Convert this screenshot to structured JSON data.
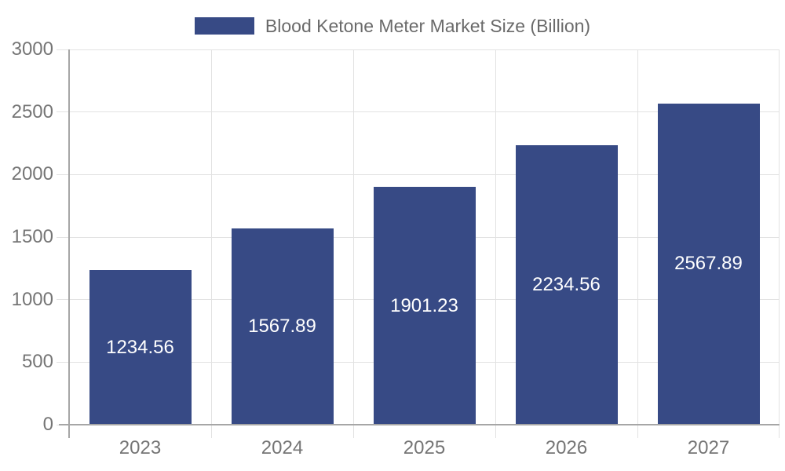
{
  "chart_data": {
    "type": "bar",
    "title": "Blood Ketone Meter Market Size (Billion)",
    "categories": [
      "2023",
      "2024",
      "2025",
      "2026",
      "2027"
    ],
    "values": [
      1234.56,
      1567.89,
      1901.23,
      2234.56,
      2567.89
    ],
    "value_labels": [
      "1234.56",
      "1567.89",
      "1901.23",
      "2234.56",
      "2567.89"
    ],
    "xlabel": "",
    "ylabel": "",
    "ylim": [
      0,
      3000
    ],
    "y_tick_step": 500,
    "y_tick_labels": [
      "0",
      "500",
      "1000",
      "1500",
      "2000",
      "2500",
      "3000"
    ],
    "grid": true,
    "legend_position": "top-center",
    "value_label_position": "inside-center",
    "colors": {
      "series": "#374a85",
      "value_label": "#ffffff",
      "grid_line": "#e2e2e2",
      "axis_line": "#a6a6a6",
      "tick_label": "#757575",
      "title_text": "#6a6a6a",
      "background": "#ffffff"
    }
  }
}
